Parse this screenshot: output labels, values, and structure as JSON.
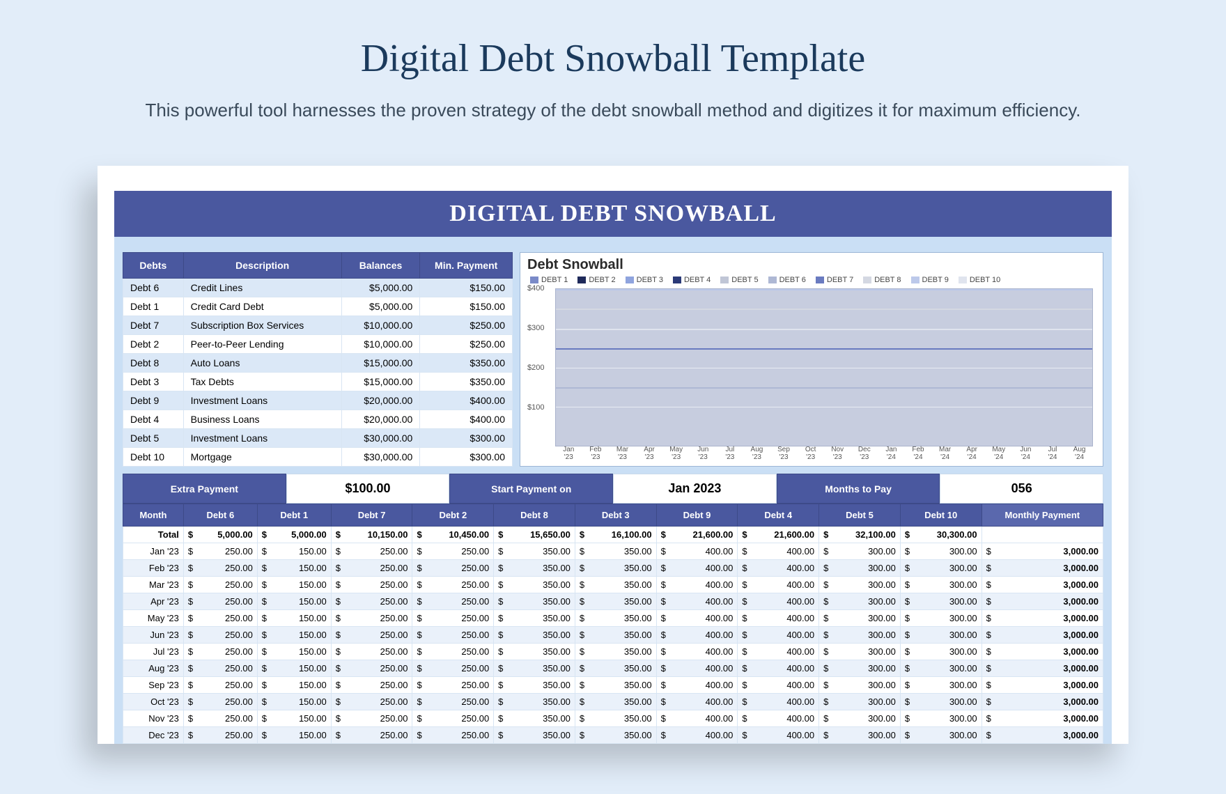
{
  "hero": {
    "title": "Digital Debt Snowball Template",
    "subtitle": "This powerful tool harnesses the proven strategy of the debt snowball method and digitizes it for maximum efficiency."
  },
  "banner": "DIGITAL DEBT SNOWBALL",
  "palette": {
    "page_bg": "#e2edf9",
    "banner_bg": "#4a589f",
    "banner_fg": "#ffffff",
    "alt_row": "#dbe8f7",
    "chart_plot_bg": "#c7cddf"
  },
  "debt_table": {
    "headers": [
      "Debts",
      "Description",
      "Balances",
      "Min. Payment"
    ],
    "rows": [
      {
        "id": "Debt 6",
        "desc": "Credit Lines",
        "bal": "$5,000.00",
        "min": "$150.00"
      },
      {
        "id": "Debt 1",
        "desc": "Credit Card Debt",
        "bal": "$5,000.00",
        "min": "$150.00"
      },
      {
        "id": "Debt 7",
        "desc": "Subscription Box Services",
        "bal": "$10,000.00",
        "min": "$250.00"
      },
      {
        "id": "Debt 2",
        "desc": "Peer-to-Peer Lending",
        "bal": "$10,000.00",
        "min": "$250.00"
      },
      {
        "id": "Debt 8",
        "desc": "Auto Loans",
        "bal": "$15,000.00",
        "min": "$350.00"
      },
      {
        "id": "Debt 3",
        "desc": "Tax Debts",
        "bal": "$15,000.00",
        "min": "$350.00"
      },
      {
        "id": "Debt 9",
        "desc": "Investment Loans",
        "bal": "$20,000.00",
        "min": "$400.00"
      },
      {
        "id": "Debt 4",
        "desc": "Business Loans",
        "bal": "$20,000.00",
        "min": "$400.00"
      },
      {
        "id": "Debt 5",
        "desc": "Investment Loans",
        "bal": "$30,000.00",
        "min": "$300.00"
      },
      {
        "id": "Debt 10",
        "desc": "Mortgage",
        "bal": "$30,000.00",
        "min": "$300.00"
      }
    ]
  },
  "chart": {
    "title": "Debt Snowball",
    "type": "line",
    "legend": [
      {
        "label": "DEBT 1",
        "color": "#7a8ac8"
      },
      {
        "label": "DEBT 2",
        "color": "#1f2a5a"
      },
      {
        "label": "DEBT 3",
        "color": "#8fa4de"
      },
      {
        "label": "DEBT 4",
        "color": "#2b3a78"
      },
      {
        "label": "DEBT 5",
        "color": "#c0c6d6"
      },
      {
        "label": "DEBT 6",
        "color": "#aeb8d4"
      },
      {
        "label": "DEBT 7",
        "color": "#6a7bc0"
      },
      {
        "label": "DEBT 8",
        "color": "#d4d8e2"
      },
      {
        "label": "DEBT 9",
        "color": "#bcc9ea"
      },
      {
        "label": "DEBT 10",
        "color": "#e0e4ee"
      }
    ],
    "ylim": [
      0,
      400
    ],
    "yticks": [
      "$400",
      "$300",
      "$200",
      "$100"
    ],
    "flat_values": {
      "DEBT 1": 150,
      "DEBT 2": 250,
      "DEBT 3": 350,
      "DEBT 4": 400,
      "DEBT 5": 300,
      "DEBT 6": 150,
      "DEBT 7": 250,
      "DEBT 8": 350,
      "DEBT 9": 400,
      "DEBT 10": 300
    },
    "x_labels": [
      "Jan '23",
      "Feb '23",
      "Mar '23",
      "Apr '23",
      "May '23",
      "Jun '23",
      "Jul '23",
      "Aug '23",
      "Sep '23",
      "Oct '23",
      "Nov '23",
      "Dec '23",
      "Jan '24",
      "Feb '24",
      "Mar '24",
      "Apr '24",
      "May '24",
      "Jun '24",
      "Jul '24",
      "Aug '24"
    ]
  },
  "controls": {
    "extra_payment": {
      "label": "Extra Payment",
      "value": "$100.00"
    },
    "start": {
      "label": "Start Payment on",
      "value": "Jan 2023"
    },
    "months": {
      "label": "Months to Pay",
      "value": "056"
    }
  },
  "schedule": {
    "headers": [
      "Month",
      "Debt 6",
      "Debt 1",
      "Debt 7",
      "Debt 2",
      "Debt 8",
      "Debt 3",
      "Debt 9",
      "Debt 4",
      "Debt 5",
      "Debt 10",
      "Monthly Payment"
    ],
    "totals": [
      "Total",
      "5,000.00",
      "5,000.00",
      "10,150.00",
      "10,450.00",
      "15,650.00",
      "16,100.00",
      "21,600.00",
      "21,600.00",
      "32,100.00",
      "30,300.00",
      ""
    ],
    "row_values": [
      "250.00",
      "150.00",
      "250.00",
      "250.00",
      "350.00",
      "350.00",
      "400.00",
      "400.00",
      "300.00",
      "300.00",
      "3,000.00"
    ],
    "months": [
      "Jan '23",
      "Feb '23",
      "Mar '23",
      "Apr '23",
      "May '23",
      "Jun '23",
      "Jul '23",
      "Aug '23",
      "Sep '23",
      "Oct '23",
      "Nov '23",
      "Dec '23"
    ]
  }
}
